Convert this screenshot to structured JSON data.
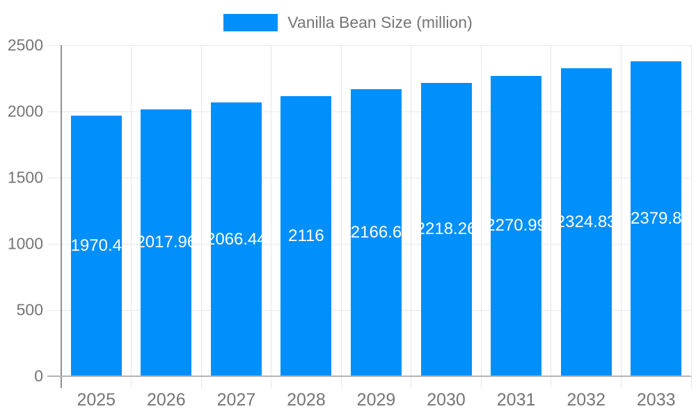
{
  "legend": {
    "series_label": "Vanilla Bean Size (million)"
  },
  "chart_data": {
    "type": "bar",
    "title": "",
    "series_name": "Vanilla Bean Size (million)",
    "categories": [
      "2025",
      "2026",
      "2027",
      "2028",
      "2029",
      "2030",
      "2031",
      "2032",
      "2033"
    ],
    "values": [
      1970.4,
      2017.96,
      2066.44,
      2116,
      2166.6,
      2218.26,
      2270.99,
      2324.83,
      2379.8
    ],
    "data_labels": [
      "1970.4",
      "2017.96",
      "2066.44",
      "2116",
      "2166.6",
      "2218.26",
      "2270.99",
      "2324.83",
      "2379.8"
    ],
    "yticks": [
      0,
      500,
      1000,
      1500,
      2000,
      2500
    ],
    "ylim": [
      0,
      2500
    ],
    "xlabel": "",
    "ylabel": "",
    "grid": true,
    "legend_position": "top",
    "colors": {
      "bar": "#008FFB",
      "data_label": "#ffffff",
      "axis_text": "#757575",
      "gridline": "#e7e7e7",
      "x_axis_line": "#b3b3b3",
      "y_axis_line": "#8f8f8f"
    }
  }
}
